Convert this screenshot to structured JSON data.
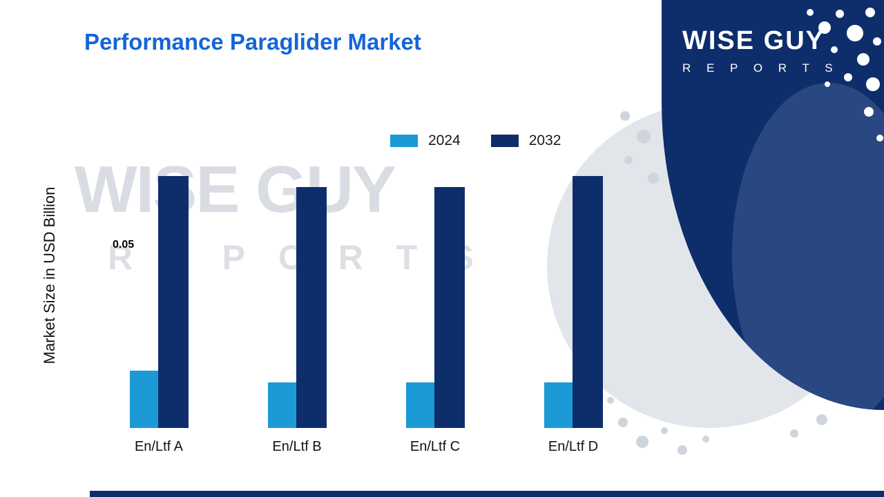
{
  "title": "Performance Paraglider Market",
  "brand": {
    "line1": "WISE GUY",
    "line2": "R E P O R T S"
  },
  "watermark": {
    "line1": "WISE GUY",
    "line2": "REPORTS"
  },
  "chart_data": {
    "type": "bar",
    "title": "Performance Paraglider Market",
    "ylabel": "Market Size in USD Billion",
    "xlabel": "",
    "categories": [
      "En/Ltf A",
      "En/Ltf B",
      "En/Ltf C",
      "En/Ltf D"
    ],
    "series": [
      {
        "name": "2024",
        "color": "#1b9ad6",
        "values": [
          0.05,
          0.04,
          0.04,
          0.04
        ]
      },
      {
        "name": "2032",
        "color": "#0d2e6b",
        "values": [
          0.22,
          0.21,
          0.21,
          0.22
        ]
      }
    ],
    "annotation": "0.05",
    "ylim": [
      0,
      0.24
    ],
    "grid": false,
    "legend_position": "top"
  },
  "colors": {
    "title_blue": "#1565d8",
    "navy": "#0d2e6b",
    "light_blue": "#1b9ad6",
    "watermark_gray": "#d9dde3"
  }
}
